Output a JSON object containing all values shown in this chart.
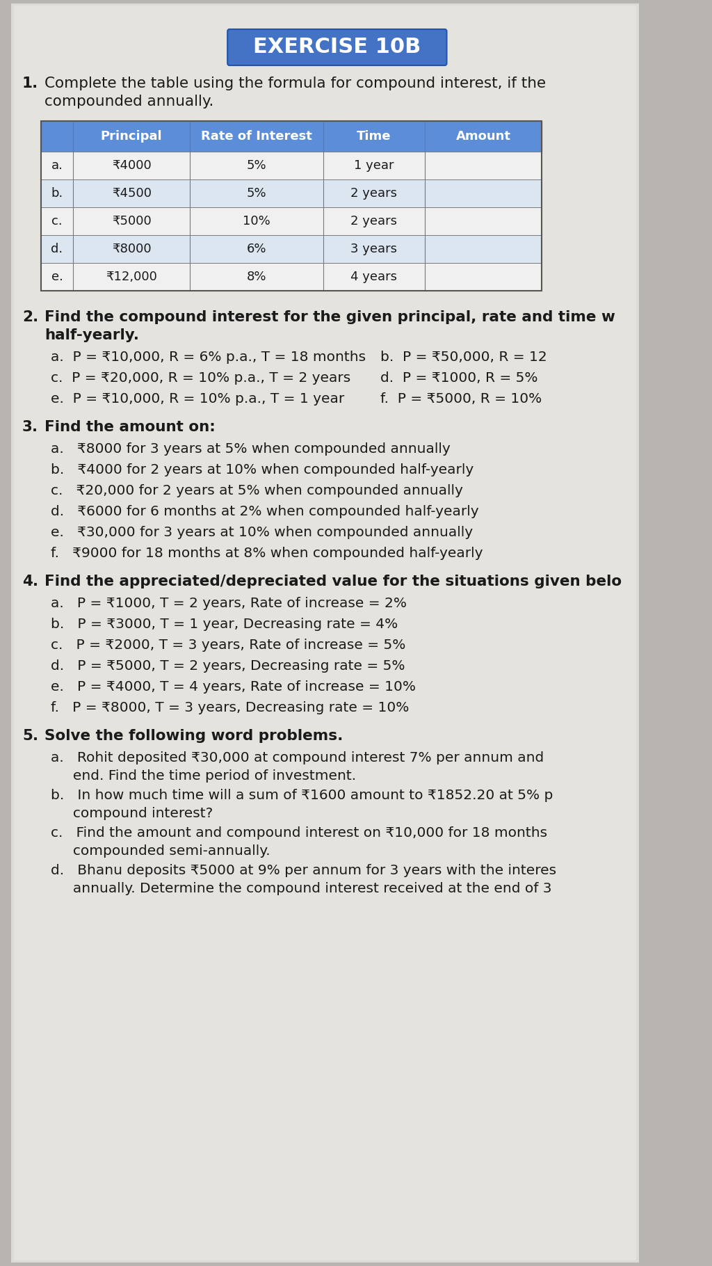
{
  "title": "EXERCISE 10B",
  "title_bg": "#4472c4",
  "title_text_color": "#ffffff",
  "page_bg": "#d8d5cc",
  "content_bg": "#e8e6e0",
  "table_header_bg": "#5b8dd9",
  "table_header_text": "#ffffff",
  "table_row_bg1": "#f0f0f0",
  "table_row_bg2": "#dce6f1",
  "table_border": "#888888",
  "text_color": "#1a1a1a",
  "table_headers": [
    "",
    "Principal",
    "Rate of Interest",
    "Time",
    "Amount"
  ],
  "table_rows": [
    [
      "a.",
      "₹4000",
      "5%",
      "1 year",
      ""
    ],
    [
      "b.",
      "₹4500",
      "5%",
      "2 years",
      ""
    ],
    [
      "c.",
      "₹5000",
      "10%",
      "2 years",
      ""
    ],
    [
      "d.",
      "₹8000",
      "6%",
      "3 years",
      ""
    ],
    [
      "e.",
      "₹12,000",
      "8%",
      "4 years",
      ""
    ]
  ],
  "q2_items": [
    [
      "a.  P = ₹10,000, R = 6% p.a., T = 18 months",
      "b.  P = ₹50,000, R = 12"
    ],
    [
      "c.  P = ₹20,000, R = 10% p.a., T = 2 years",
      "d.  P = ₹1000, R = 5%"
    ],
    [
      "e.  P = ₹10,000, R = 10% p.a., T = 1 year",
      "f.  P = ₹5000, R = 10%"
    ]
  ],
  "q3_items": [
    "a.   ₹8000 for 3 years at 5% when compounded annually",
    "b.   ₹4000 for 2 years at 10% when compounded half-yearly",
    "c.   ₹20,000 for 2 years at 5% when compounded annually",
    "d.   ₹6000 for 6 months at 2% when compounded half-yearly",
    "e.   ₹30,000 for 3 years at 10% when compounded annually",
    "f.   ₹9000 for 18 months at 8% when compounded half-yearly"
  ],
  "q4_items": [
    "a.   P = ₹1000, T = 2 years, Rate of increase = 2%",
    "b.   P = ₹3000, T = 1 year, Decreasing rate = 4%",
    "c.   P = ₹2000, T = 3 years, Rate of increase = 5%",
    "d.   P = ₹5000, T = 2 years, Decreasing rate = 5%",
    "e.   P = ₹4000, T = 4 years, Rate of increase = 10%",
    "f.   P = ₹8000, T = 3 years, Decreasing rate = 10%"
  ],
  "q5_items": [
    [
      "a.   Rohit deposited ₹30,000 at compound interest 7% per annum and",
      "     end. Find the time period of investment."
    ],
    [
      "b.   In how much time will a sum of ₹1600 amount to ₹1852.20 at 5% p",
      "     compound interest?"
    ],
    [
      "c.   Find the amount and compound interest on ₹10,000 for 18 months",
      "     compounded semi-annually."
    ],
    [
      "d.   Bhanu deposits ₹5000 at 9% per annum for 3 years with the interes",
      "     annually. Determine the compound interest received at the end of 3"
    ]
  ]
}
